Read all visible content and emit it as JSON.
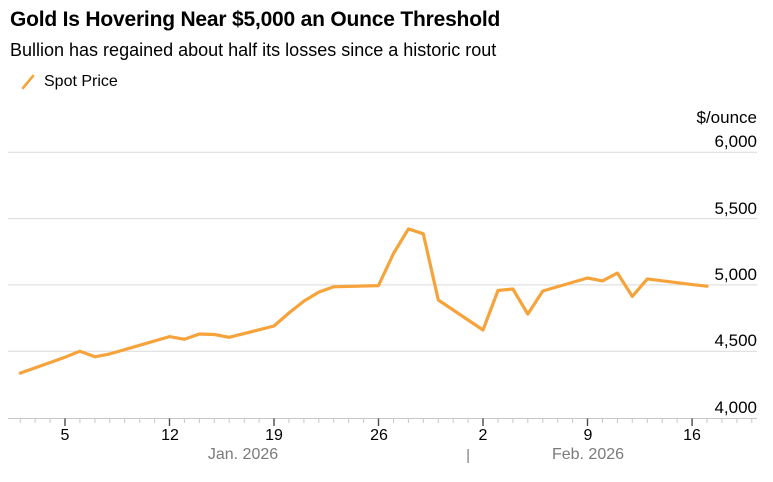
{
  "header": {
    "title": "Gold Is Hovering Near $5,000 an Ounce Threshold",
    "subtitle": "Bullion has regained about half its losses since a historic rout"
  },
  "legend": {
    "label": "Spot Price"
  },
  "colors": {
    "line": "#F7A33C",
    "gridline": "#D9D9D9",
    "axis_line": "#C6C6C6",
    "tick_minor": "#C6C6C6",
    "tick_major": "#4A4A4A",
    "month_label": "#7A7A7A",
    "text": "#000000"
  },
  "chart_data": {
    "type": "line",
    "title": "Gold Is Hovering Near $5,000 an Ounce Threshold",
    "subtitle": "Bullion has regained about half its losses since a historic rout",
    "ylabel": "$/ounce",
    "xlabel": "",
    "ylim": [
      4000,
      6000
    ],
    "grid": "horizontal",
    "legend_position": "top-left",
    "y_axis": {
      "ticks": [
        {
          "value": 4000,
          "label": "4,000"
        },
        {
          "value": 4500,
          "label": "4,500"
        },
        {
          "value": 5000,
          "label": "5,000"
        },
        {
          "value": 5500,
          "label": "5,500"
        },
        {
          "value": 6000,
          "label": "6,000"
        }
      ]
    },
    "x_axis": {
      "major_ticks": [
        {
          "date": "2026-01-05",
          "label": "5"
        },
        {
          "date": "2026-01-12",
          "label": "12"
        },
        {
          "date": "2026-01-19",
          "label": "19"
        },
        {
          "date": "2026-01-26",
          "label": "26"
        },
        {
          "date": "2026-02-02",
          "label": "2"
        },
        {
          "date": "2026-02-09",
          "label": "9"
        },
        {
          "date": "2026-02-16",
          "label": "16"
        }
      ],
      "minor_tick_interval": "1 day",
      "minor_tick_range": [
        "2026-01-02",
        "2026-02-20"
      ],
      "month_labels": [
        {
          "label": "Jan. 2026"
        },
        {
          "label": "Feb. 2026"
        }
      ],
      "month_separator_date": "2026-02-01"
    },
    "series": [
      {
        "name": "Spot Price",
        "color": "#F7A33C",
        "points": [
          {
            "date": "2026-01-02",
            "value": 4335
          },
          {
            "date": "2026-01-05",
            "value": 4455
          },
          {
            "date": "2026-01-06",
            "value": 4500
          },
          {
            "date": "2026-01-07",
            "value": 4458
          },
          {
            "date": "2026-01-08",
            "value": 4480
          },
          {
            "date": "2026-01-09",
            "value": 4512
          },
          {
            "date": "2026-01-12",
            "value": 4610
          },
          {
            "date": "2026-01-13",
            "value": 4590
          },
          {
            "date": "2026-01-14",
            "value": 4630
          },
          {
            "date": "2026-01-15",
            "value": 4626
          },
          {
            "date": "2026-01-16",
            "value": 4605
          },
          {
            "date": "2026-01-19",
            "value": 4690
          },
          {
            "date": "2026-01-20",
            "value": 4788
          },
          {
            "date": "2026-01-21",
            "value": 4878
          },
          {
            "date": "2026-01-22",
            "value": 4946
          },
          {
            "date": "2026-01-23",
            "value": 4986
          },
          {
            "date": "2026-01-26",
            "value": 4995
          },
          {
            "date": "2026-01-27",
            "value": 5237
          },
          {
            "date": "2026-01-28",
            "value": 5422
          },
          {
            "date": "2026-01-29",
            "value": 5385
          },
          {
            "date": "2026-01-30",
            "value": 4886
          },
          {
            "date": "2026-02-02",
            "value": 4660
          },
          {
            "date": "2026-02-03",
            "value": 4958
          },
          {
            "date": "2026-02-04",
            "value": 4969
          },
          {
            "date": "2026-02-05",
            "value": 4780
          },
          {
            "date": "2026-02-06",
            "value": 4954
          },
          {
            "date": "2026-02-09",
            "value": 5052
          },
          {
            "date": "2026-02-10",
            "value": 5030
          },
          {
            "date": "2026-02-11",
            "value": 5090
          },
          {
            "date": "2026-02-12",
            "value": 4913
          },
          {
            "date": "2026-02-13",
            "value": 5045
          },
          {
            "date": "2026-02-16",
            "value": 5002
          },
          {
            "date": "2026-02-17",
            "value": 4990
          }
        ]
      }
    ]
  }
}
